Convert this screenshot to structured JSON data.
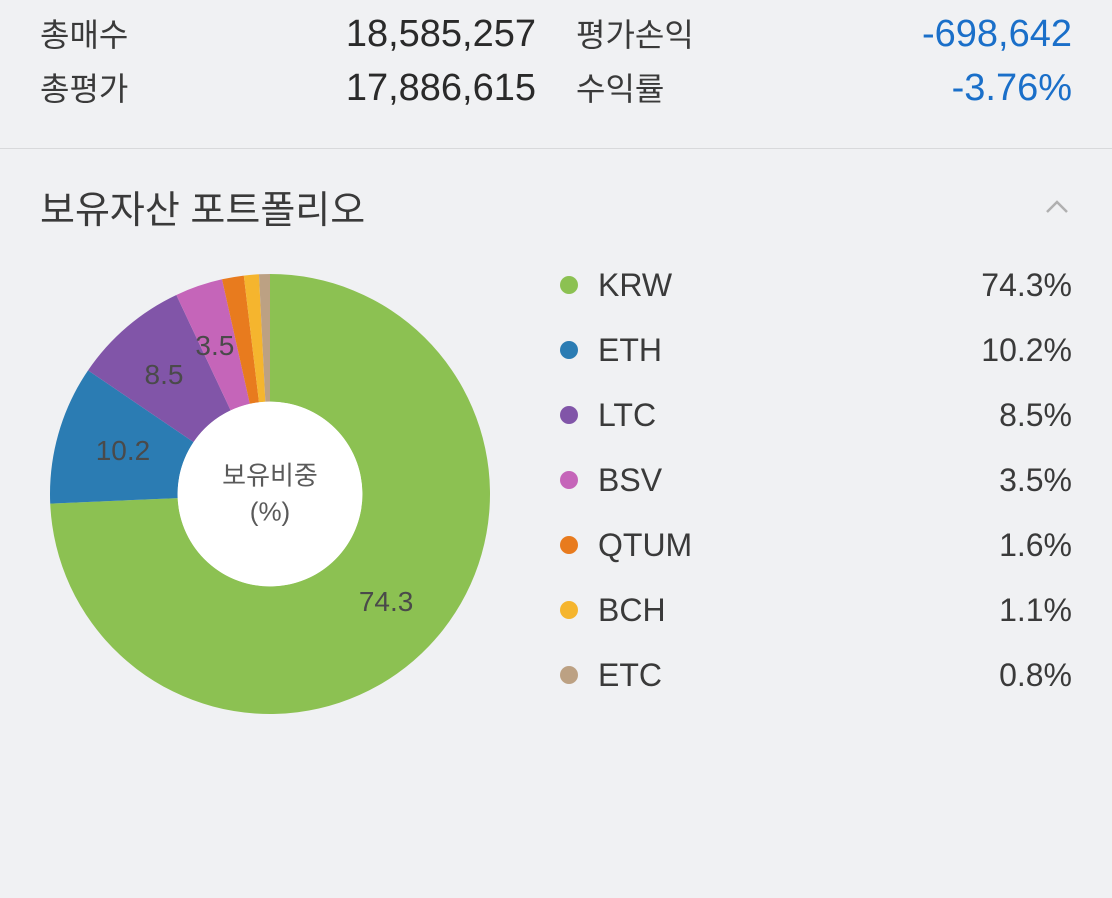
{
  "summary": {
    "total_buy_label": "총매수",
    "total_buy_value": "18,585,257",
    "total_eval_label": "총평가",
    "total_eval_value": "17,886,615",
    "eval_pl_label": "평가손익",
    "eval_pl_value": "-698,642",
    "return_rate_label": "수익률",
    "return_rate_value": "-3.76%"
  },
  "portfolio": {
    "title": "보유자산 포트폴리오",
    "center_label_line1": "보유비중",
    "center_label_line2": "(%)",
    "chart": {
      "type": "donut",
      "inner_radius_ratio": 0.42,
      "outer_radius": 220,
      "background_color": "#f0f1f3",
      "slices": [
        {
          "name": "KRW",
          "value": 74.3,
          "color": "#8cc152",
          "show_label": true
        },
        {
          "name": "ETH",
          "value": 10.2,
          "color": "#2b7cb3",
          "show_label": true
        },
        {
          "name": "LTC",
          "value": 8.5,
          "color": "#8155a8",
          "show_label": true
        },
        {
          "name": "BSV",
          "value": 3.5,
          "color": "#c565b9",
          "show_label": true
        },
        {
          "name": "QTUM",
          "value": 1.6,
          "color": "#e87b1e",
          "show_label": false
        },
        {
          "name": "BCH",
          "value": 1.1,
          "color": "#f5b52e",
          "show_label": false
        },
        {
          "name": "ETC",
          "value": 0.8,
          "color": "#bca183",
          "show_label": false
        }
      ],
      "label_fontsize": 28,
      "label_color": "#4a4a4a"
    },
    "legend": [
      {
        "label": "KRW",
        "value": "74.3%",
        "color": "#8cc152"
      },
      {
        "label": "ETH",
        "value": "10.2%",
        "color": "#2b7cb3"
      },
      {
        "label": "LTC",
        "value": "8.5%",
        "color": "#8155a8"
      },
      {
        "label": "BSV",
        "value": "3.5%",
        "color": "#c565b9"
      },
      {
        "label": "QTUM",
        "value": "1.6%",
        "color": "#e87b1e"
      },
      {
        "label": "BCH",
        "value": "1.1%",
        "color": "#f5b52e"
      },
      {
        "label": "ETC",
        "value": "0.8%",
        "color": "#bca183"
      }
    ]
  },
  "colors": {
    "negative": "#1a6fc9",
    "text_primary": "#3a3a3a",
    "text_secondary": "#5a5a5a",
    "background": "#f0f1f3",
    "divider": "#d8d9db"
  }
}
